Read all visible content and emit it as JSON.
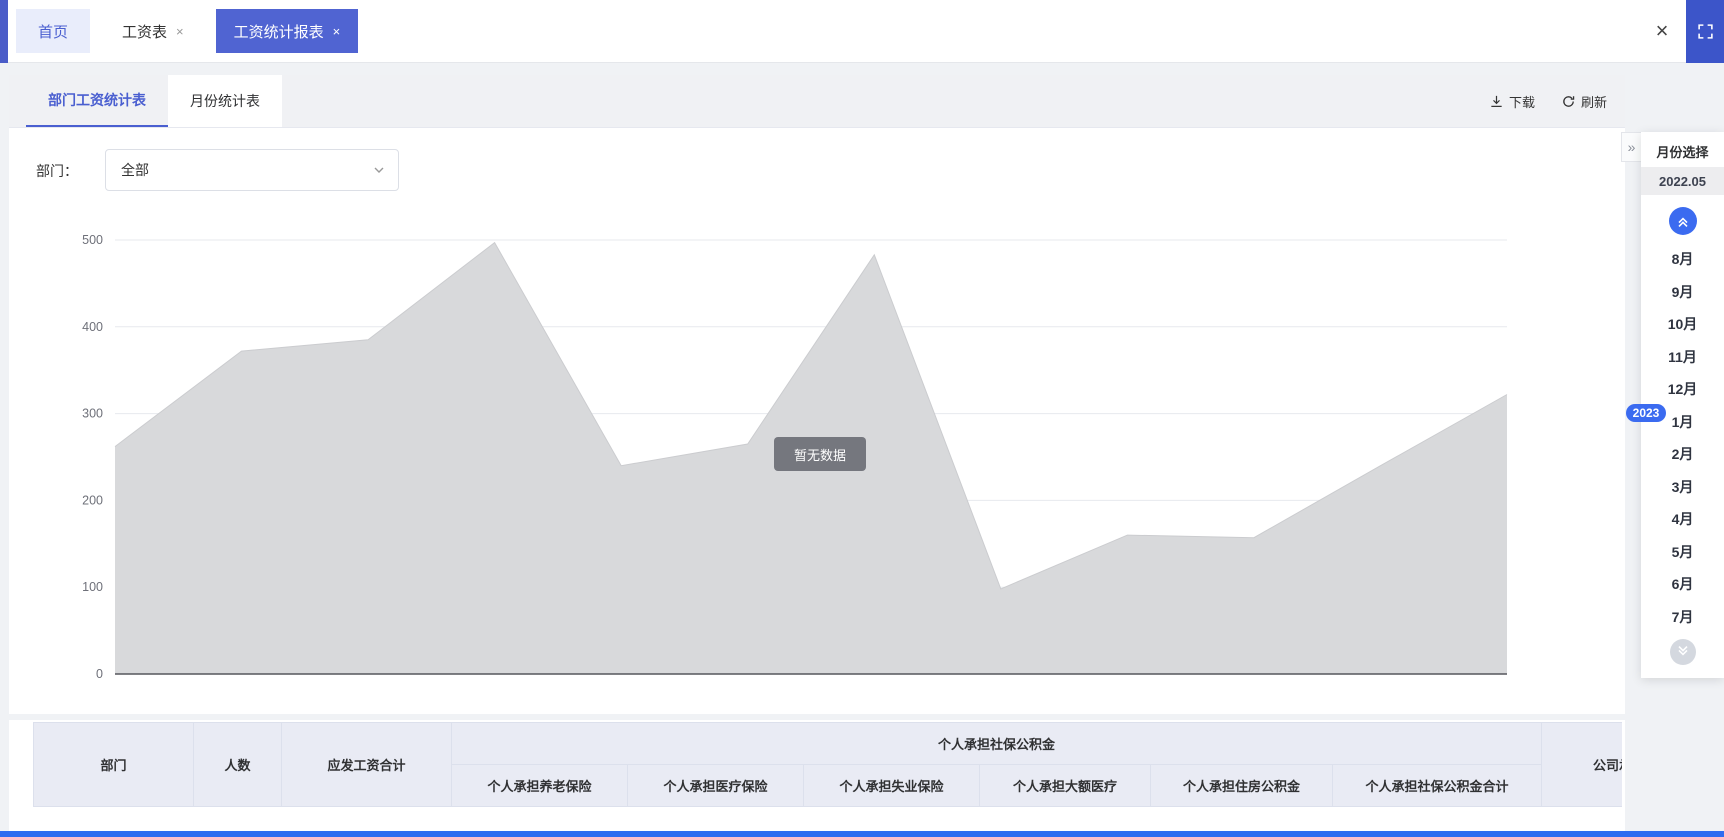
{
  "colors": {
    "accent": "#5064D2",
    "link_blue": "#4A5FD0",
    "badge_blue": "#3B6BF0",
    "bottom_bar": "#2E6CF0",
    "area_fill": "#D8D9DB",
    "header_bg": "#E9EBF4"
  },
  "topbar": {
    "tabs": [
      {
        "label": "首页",
        "closable": false,
        "active": false
      },
      {
        "label": "工资表",
        "closable": true,
        "active": false
      },
      {
        "label": "工资统计报表",
        "closable": true,
        "active": true
      }
    ],
    "close_glyph": "×"
  },
  "toolbar": {
    "download_label": "下载",
    "refresh_label": "刷新"
  },
  "report_tabs": [
    {
      "label": "部门工资统计表",
      "active": true
    },
    {
      "label": "月份统计表",
      "active": false
    }
  ],
  "filter": {
    "label": "部门：",
    "value": "全部"
  },
  "chart_data": {
    "type": "area",
    "title": "",
    "xlabel": "",
    "ylabel": "",
    "x": [
      1,
      2,
      3,
      4,
      5,
      6,
      7,
      8,
      9,
      10,
      11,
      12
    ],
    "values": [
      262,
      372,
      385,
      497,
      240,
      265,
      483,
      98,
      160,
      157,
      240,
      322
    ],
    "ylim": [
      0,
      500
    ],
    "ytick_step": 100,
    "grid": true,
    "legend": "none",
    "series_color": "#D8D9DB",
    "no_data_label": "暂无数据"
  },
  "month_panel": {
    "collapse_icon": "»",
    "title": "月份选择",
    "current": "2022.05",
    "year_badge": "2023",
    "months": [
      "8月",
      "9月",
      "10月",
      "11月",
      "12月",
      "1月",
      "2月",
      "3月",
      "4月",
      "5月",
      "6月",
      "7月"
    ]
  },
  "table": {
    "columns": [
      "部门",
      "人数",
      "应发工资合计"
    ],
    "group_header": "个人承担社保公积金",
    "sub_columns": [
      "个人承担养老保险",
      "个人承担医疗保险",
      "个人承担失业保险",
      "个人承担大额医疗",
      "个人承担住房公积金",
      "个人承担社保公积金合计"
    ],
    "trailing_column": "公司承担社保公积金"
  }
}
